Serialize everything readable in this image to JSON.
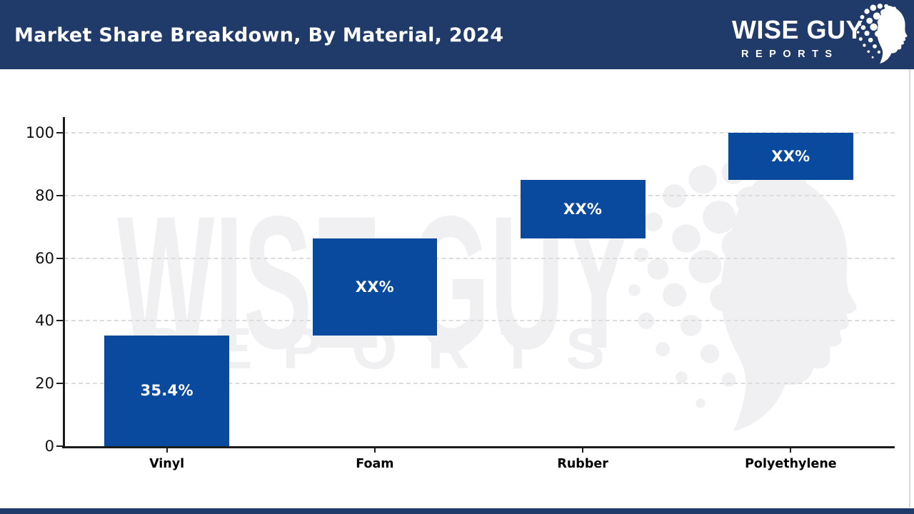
{
  "header": {
    "title": "Market Share Breakdown, By Material, 2024",
    "logo": {
      "line1": "WISE GUY",
      "line2": "REPORTS"
    }
  },
  "watermark": {
    "line1": "WISE GUY",
    "line2": "REPORTS"
  },
  "chart_data": {
    "type": "bar",
    "subtype": "waterfall",
    "title": "Market Share Breakdown, By Material, 2024",
    "categories": [
      "Vinyl",
      "Foam",
      "Rubber",
      "Polyethylene"
    ],
    "segments": [
      {
        "category": "Vinyl",
        "start": 0,
        "end": 35.4,
        "label": "35.4%"
      },
      {
        "category": "Foam",
        "start": 35.4,
        "end": 66.2,
        "label": "XX%"
      },
      {
        "category": "Rubber",
        "start": 66.2,
        "end": 85,
        "label": "XX%"
      },
      {
        "category": "Polyethylene",
        "start": 85,
        "end": 100,
        "label": "XX%"
      }
    ],
    "yticks": [
      0,
      20,
      40,
      60,
      80,
      100
    ],
    "ylim": [
      0,
      100
    ],
    "xlabel": "",
    "ylabel": "",
    "grid": "horizontal-dashed",
    "legend": "none",
    "bar_color": "#0a4a9e",
    "value_label_color": "#ffffff"
  },
  "colors": {
    "header_bg": "#203a6a",
    "footer_bg": "#203a6a",
    "bar_blue": "#0a4a9e",
    "gridline": "#dcdcdc",
    "axis": "#1c1c1c",
    "watermark": "#f0f0f2"
  }
}
